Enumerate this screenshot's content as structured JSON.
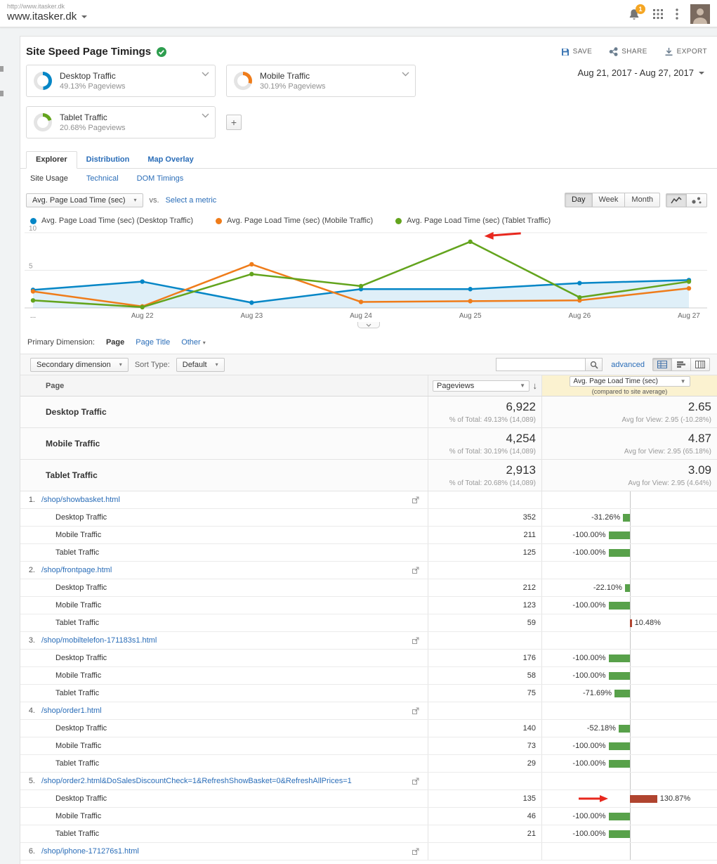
{
  "topbar": {
    "url": "http://www.itasker.dk",
    "account": "www.itasker.dk",
    "notification_count": "1"
  },
  "report": {
    "title": "Site Speed Page Timings",
    "save": "SAVE",
    "share": "SHARE",
    "export": "EXPORT",
    "date_range": "Aug 21, 2017 - Aug 27, 2017"
  },
  "segments": {
    "cards": [
      {
        "title": "Desktop Traffic",
        "subtitle": "49.13% Pageviews",
        "percent": 49.13,
        "color": "#0586c6"
      },
      {
        "title": "Mobile Traffic",
        "subtitle": "30.19% Pageviews",
        "percent": 30.19,
        "color": "#ef7c1a"
      },
      {
        "title": "Tablet Traffic",
        "subtitle": "20.68% Pageviews",
        "percent": 20.68,
        "color": "#63a41d"
      }
    ],
    "add_button": "+"
  },
  "tabs": [
    {
      "label": "Explorer",
      "active": true
    },
    {
      "label": "Distribution",
      "active": false
    },
    {
      "label": "Map Overlay",
      "active": false
    }
  ],
  "subtabs": [
    {
      "label": "Site Usage",
      "active": true
    },
    {
      "label": "Technical",
      "active": false
    },
    {
      "label": "DOM Timings",
      "active": false
    }
  ],
  "metric_bar": {
    "metric": "Avg. Page Load Time (sec)",
    "vs": "vs.",
    "select_metric": "Select a metric",
    "granularity": [
      "Day",
      "Week",
      "Month"
    ],
    "active_granularity": "Day"
  },
  "chart_data": {
    "type": "line",
    "x": [
      "...",
      "Aug 22",
      "Aug 23",
      "Aug 24",
      "Aug 25",
      "Aug 26",
      "Aug 27"
    ],
    "ylim": [
      0,
      10
    ],
    "yticks": [
      5,
      10
    ],
    "series": [
      {
        "name": "Avg. Page Load Time (sec) (Desktop Traffic)",
        "color": "#0586c6",
        "area": true,
        "values": [
          2.4,
          3.5,
          0.7,
          2.5,
          2.5,
          3.3,
          3.7
        ]
      },
      {
        "name": "Avg. Page Load Time (sec) (Mobile Traffic)",
        "color": "#ef7c1a",
        "area": false,
        "values": [
          2.2,
          0.2,
          5.8,
          0.8,
          0.9,
          1.0,
          2.6
        ]
      },
      {
        "name": "Avg. Page Load Time (sec) (Tablet Traffic)",
        "color": "#63a41d",
        "area": false,
        "values": [
          1.0,
          0.1,
          4.5,
          2.9,
          8.8,
          1.4,
          3.5
        ]
      }
    ],
    "annotation": {
      "type": "red-arrow",
      "series": 2,
      "point": 4
    }
  },
  "primary_dimension": {
    "label": "Primary Dimension:",
    "active": "Page",
    "link1": "Page Title",
    "link2": "Other"
  },
  "toolbar": {
    "secondary_dimension": "Secondary dimension",
    "sort_type_label": "Sort Type:",
    "sort_type_value": "Default",
    "advanced": "advanced",
    "search_value": ""
  },
  "table": {
    "columns": {
      "page": "Page",
      "pageviews": "Pageviews",
      "metric": "Avg. Page Load Time (sec)",
      "metric_note": "(compared to site average)"
    },
    "totals": [
      {
        "name": "Desktop Traffic",
        "pageviews": "6,922",
        "pageviews_note": "% of Total: 49.13% (14,089)",
        "metric": "2.65",
        "metric_note": "Avg for View: 2.95 (-10.28%)"
      },
      {
        "name": "Mobile Traffic",
        "pageviews": "4,254",
        "pageviews_note": "% of Total: 30.19% (14,089)",
        "metric": "4.87",
        "metric_note": "Avg for View: 2.95 (65.18%)"
      },
      {
        "name": "Tablet Traffic",
        "pageviews": "2,913",
        "pageviews_note": "% of Total: 20.68% (14,089)",
        "metric": "3.09",
        "metric_note": "Avg for View: 2.95 (4.64%)"
      }
    ],
    "rows": [
      {
        "num": "1.",
        "page": "/shop/showbasket.html",
        "segments": [
          {
            "name": "Desktop Traffic",
            "pageviews": "352",
            "delta": -31.26,
            "delta_label": "-31.26%"
          },
          {
            "name": "Mobile Traffic",
            "pageviews": "211",
            "delta": -100,
            "delta_label": "-100.00%"
          },
          {
            "name": "Tablet Traffic",
            "pageviews": "125",
            "delta": -100,
            "delta_label": "-100.00%"
          }
        ]
      },
      {
        "num": "2.",
        "page": "/shop/frontpage.html",
        "segments": [
          {
            "name": "Desktop Traffic",
            "pageviews": "212",
            "delta": -22.1,
            "delta_label": "-22.10%"
          },
          {
            "name": "Mobile Traffic",
            "pageviews": "123",
            "delta": -100,
            "delta_label": "-100.00%"
          },
          {
            "name": "Tablet Traffic",
            "pageviews": "59",
            "delta": 10.48,
            "delta_label": "10.48%"
          }
        ]
      },
      {
        "num": "3.",
        "page": "/shop/mobiltelefon-171183s1.html",
        "segments": [
          {
            "name": "Desktop Traffic",
            "pageviews": "176",
            "delta": -100,
            "delta_label": "-100.00%"
          },
          {
            "name": "Mobile Traffic",
            "pageviews": "58",
            "delta": -100,
            "delta_label": "-100.00%"
          },
          {
            "name": "Tablet Traffic",
            "pageviews": "75",
            "delta": -71.69,
            "delta_label": "-71.69%"
          }
        ]
      },
      {
        "num": "4.",
        "page": "/shop/order1.html",
        "segments": [
          {
            "name": "Desktop Traffic",
            "pageviews": "140",
            "delta": -52.18,
            "delta_label": "-52.18%"
          },
          {
            "name": "Mobile Traffic",
            "pageviews": "73",
            "delta": -100,
            "delta_label": "-100.00%"
          },
          {
            "name": "Tablet Traffic",
            "pageviews": "29",
            "delta": -100,
            "delta_label": "-100.00%"
          }
        ]
      },
      {
        "num": "5.",
        "page": "/shop/order2.html&DoSalesDiscountCheck=1&RefreshShowBasket=0&RefreshAllPrices=1",
        "segments": [
          {
            "name": "Desktop Traffic",
            "pageviews": "135",
            "delta": 130.87,
            "delta_label": "130.87%",
            "arrow": true
          },
          {
            "name": "Mobile Traffic",
            "pageviews": "46",
            "delta": -100,
            "delta_label": "-100.00%"
          },
          {
            "name": "Tablet Traffic",
            "pageviews": "21",
            "delta": -100,
            "delta_label": "-100.00%"
          }
        ]
      },
      {
        "num": "6.",
        "page": "/shop/iphone-171276s1.html",
        "segments": []
      }
    ]
  },
  "colors": {
    "positive_bar": "#b0442f",
    "negative_bar": "#58a14a",
    "annotation": "#e8281e",
    "link": "#2a6db8"
  }
}
